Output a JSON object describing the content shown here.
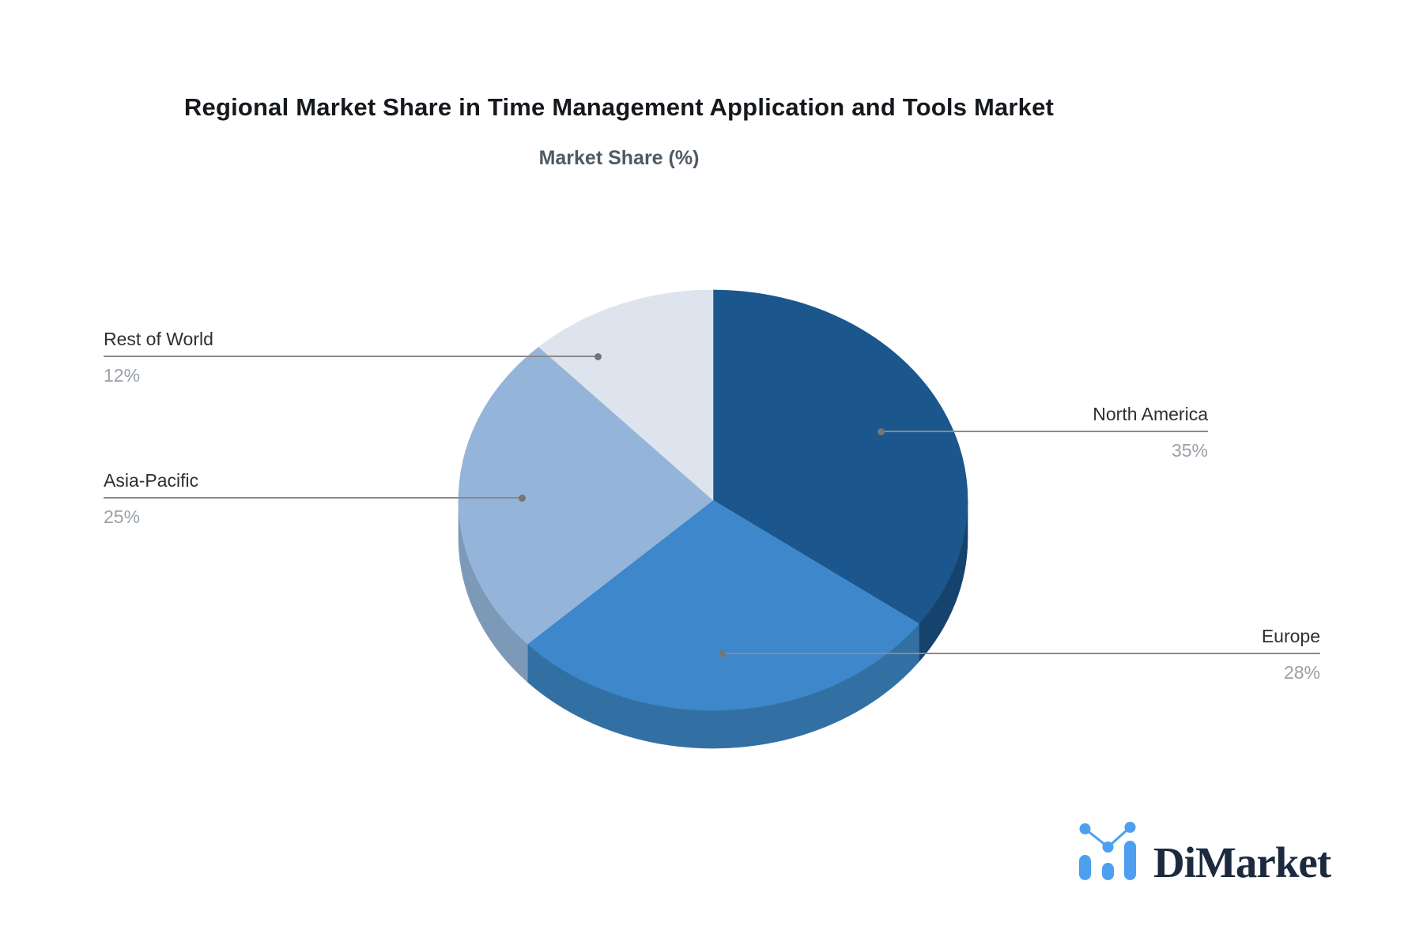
{
  "header": {
    "title": "Regional Market Share in Time Management Application and Tools Market",
    "subtitle": "Market Share (%)"
  },
  "chart_data": {
    "type": "pie",
    "style": "3d-pie",
    "title": "Regional Market Share in Time Management Application and Tools Market",
    "series_name": "Market Share (%)",
    "unit": "%",
    "start_angle": "top",
    "direction": "clockwise",
    "labels": [
      "North America",
      "Europe",
      "Asia-Pacific",
      "Rest of World"
    ],
    "values": [
      35,
      28,
      25,
      12
    ],
    "display_values": [
      "35%",
      "28%",
      "25%",
      "12%"
    ],
    "colors": [
      "#1b568c",
      "#3d87ca",
      "#94b5d9",
      "#dde4ee"
    ],
    "side_colors": [
      "#16436d",
      "#3270a3",
      "#7d99b8",
      "#c6d2e2"
    ],
    "legend": "none",
    "label_layout": "callout-leader-lines"
  },
  "callouts": [
    {
      "label": "North America",
      "value": "35%"
    },
    {
      "label": "Europe",
      "value": "28%"
    },
    {
      "label": "Asia-Pacific",
      "value": "25%"
    },
    {
      "label": "Rest of World",
      "value": "12%"
    }
  ],
  "brand": {
    "name": "DiMarket"
  },
  "palette": {
    "background": "#ffffff",
    "title_text": "#15191e",
    "subtitle_text": "#4e5a66",
    "label_text": "#2f2f2f",
    "value_text": "#99a1a8",
    "leader_line": "#8a8a8a",
    "leader_dot": "#767676",
    "logo_blue": "#4da0f0",
    "logo_navy": "#1b2a3f"
  }
}
